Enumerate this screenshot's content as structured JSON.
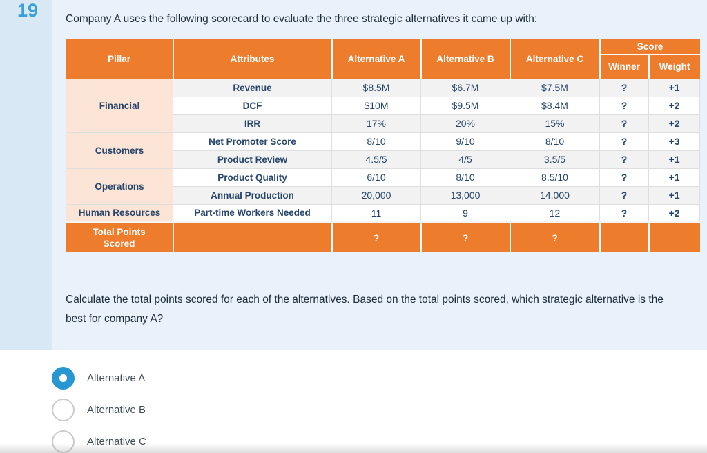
{
  "question": {
    "number": "19",
    "intro": "Company A uses the following scorecard to evaluate the three strategic alternatives it came up with:",
    "prompt": "Calculate the total points scored for each of the alternatives. Based on the total points scored, which strategic alternative is the best for company A?"
  },
  "table": {
    "headers": {
      "pillar": "Pillar",
      "attributes": "Attributes",
      "alt_a": "Alternative A",
      "alt_b": "Alternative B",
      "alt_c": "Alternative C",
      "score": "Score",
      "winner": "Winner",
      "weight": "Weight"
    },
    "rows": [
      {
        "pillar": "Financial",
        "span": 3,
        "attribute": "Revenue",
        "a": "$8.5M",
        "b": "$6.7M",
        "c": "$7.5M",
        "winner": "?",
        "weight": "+1"
      },
      {
        "attribute": "DCF",
        "a": "$10M",
        "b": "$9.5M",
        "c": "$8.4M",
        "winner": "?",
        "weight": "+2"
      },
      {
        "attribute": "IRR",
        "a": "17%",
        "b": "20%",
        "c": "15%",
        "winner": "?",
        "weight": "+2"
      },
      {
        "pillar": "Customers",
        "span": 2,
        "attribute": "Net Promoter Score",
        "a": "8/10",
        "b": "9/10",
        "c": "8/10",
        "winner": "?",
        "weight": "+3"
      },
      {
        "attribute": "Product Review",
        "a": "4.5/5",
        "b": "4/5",
        "c": "3.5/5",
        "winner": "?",
        "weight": "+1"
      },
      {
        "pillar": "Operations",
        "span": 2,
        "attribute": "Product Quality",
        "a": "6/10",
        "b": "8/10",
        "c": "8.5/10",
        "winner": "?",
        "weight": "+1"
      },
      {
        "attribute": "Annual Production",
        "a": "20,000",
        "b": "13,000",
        "c": "14,000",
        "winner": "?",
        "weight": "+1"
      },
      {
        "pillar": "Human Resources",
        "span": 1,
        "attribute": "Part-time Workers Needed",
        "a": "11",
        "b": "9",
        "c": "12",
        "winner": "?",
        "weight": "+2"
      }
    ],
    "footer": {
      "label": "Total Points Scored",
      "a": "?",
      "b": "?",
      "c": "?",
      "winner": "",
      "weight": ""
    }
  },
  "options": [
    {
      "label": "Alternative A",
      "selected": true
    },
    {
      "label": "Alternative B",
      "selected": false
    },
    {
      "label": "Alternative C",
      "selected": false
    }
  ],
  "colors": {
    "header_orange": "#ee7c2d",
    "pillar_peach": "#fce4d6",
    "stripe_gray": "#f2f2f2",
    "navy_text": "#25456a",
    "question_number_blue": "#3a9ed8",
    "radio_selected_blue": "#2697d3",
    "panel_blue": "#e9f2fa",
    "sidebar_blue": "#d8e8f4"
  }
}
